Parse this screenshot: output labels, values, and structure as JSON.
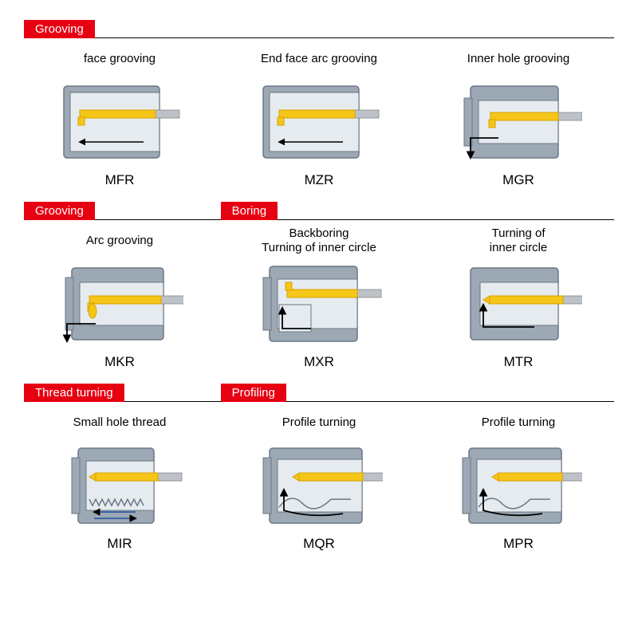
{
  "colors": {
    "tag_bg": "#e60012",
    "tag_text": "#ffffff",
    "workpiece_fill": "#9ca8b4",
    "workpiece_edge": "#6b7785",
    "cavity_fill": "#e6ebf0",
    "tool_yellow": "#f5c518",
    "tool_yellow_dark": "#d9a400",
    "tool_body": "#bcc2c8",
    "arrow": "#000000"
  },
  "rows": [
    {
      "tags": [
        {
          "text": "Grooving",
          "slot": 0
        }
      ],
      "cells": [
        {
          "title": "face grooving",
          "code": "MFR",
          "shape": "facegroove",
          "arrow_dir": "left"
        },
        {
          "title": "End face arc grooving",
          "code": "MZR",
          "shape": "facegroove",
          "arrow_dir": "left"
        },
        {
          "title": "Inner hole grooving",
          "code": "MGR",
          "shape": "innergroove",
          "arrow_dir": "leftdown"
        }
      ]
    },
    {
      "tags": [
        {
          "text": "Grooving",
          "slot": 0
        },
        {
          "text": "Boring",
          "slot": 1
        }
      ],
      "cells": [
        {
          "title": "Arc grooving",
          "code": "MKR",
          "shape": "arcgroove",
          "arrow_dir": "leftdown"
        },
        {
          "title": "Backboring\nTurning of inner circle",
          "code": "MXR",
          "shape": "backbore",
          "arrow_dir": "upleft"
        },
        {
          "title": "Turning of\ninner circle",
          "code": "MTR",
          "shape": "innerturn",
          "arrow_dir": "upleft"
        }
      ]
    },
    {
      "tags": [
        {
          "text": "Thread turning",
          "slot": 0
        },
        {
          "text": "Profiling",
          "slot": 1
        }
      ],
      "cells": [
        {
          "title": "Small hole thread",
          "code": "MIR",
          "shape": "thread",
          "arrow_dir": "loop"
        },
        {
          "title": "Profile turning",
          "code": "MQR",
          "shape": "profile",
          "arrow_dir": "upleft"
        },
        {
          "title": "Profile turning",
          "code": "MPR",
          "shape": "profile2",
          "arrow_dir": "upleft"
        }
      ]
    }
  ]
}
